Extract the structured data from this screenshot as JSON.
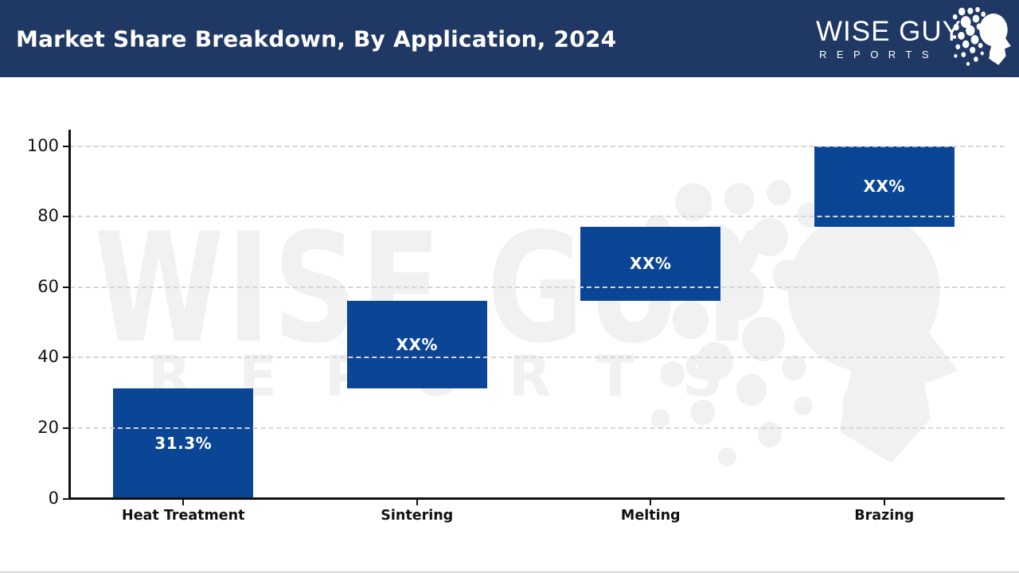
{
  "header": {
    "title": "Market Share Breakdown, By Application, 2024",
    "logo": {
      "line1": "WISE GUY",
      "line2": "REPORTS"
    }
  },
  "watermark": {
    "line1": "WISE GUY",
    "line2": "REPORTS"
  },
  "colors": {
    "header_bg": "#203864",
    "title_text": "#ffffff",
    "bar": "#0b4596",
    "bar_label": "#ffffff",
    "grid": "#d6d6d6",
    "axis": "#111111",
    "watermark": "#f1f1f1",
    "bottom_rule": "#d9d9d9"
  },
  "chart_data": {
    "type": "bar",
    "variant": "floating-waterfall",
    "title": "Market Share Breakdown, By Application, 2024",
    "categories": [
      "Heat Treatment",
      "Sintering",
      "Melting",
      "Brazing"
    ],
    "series": [
      {
        "name": "Market Share (%)",
        "segments": [
          {
            "category": "Heat Treatment",
            "start": 0,
            "end": 31.3,
            "label": "31.3%"
          },
          {
            "category": "Sintering",
            "start": 31.3,
            "end": 56.2,
            "label": "XX%"
          },
          {
            "category": "Melting",
            "start": 56.2,
            "end": 77.2,
            "label": "XX%"
          },
          {
            "category": "Brazing",
            "start": 77.2,
            "end": 100,
            "label": "XX%"
          }
        ]
      }
    ],
    "xlabel": "",
    "ylabel": "",
    "ylim": [
      0,
      106
    ],
    "yticks": [
      0,
      20,
      40,
      60,
      80,
      100
    ],
    "grid": {
      "axis": "y",
      "style": "dashed",
      "drawn_above_bars": true
    },
    "legend": null
  }
}
